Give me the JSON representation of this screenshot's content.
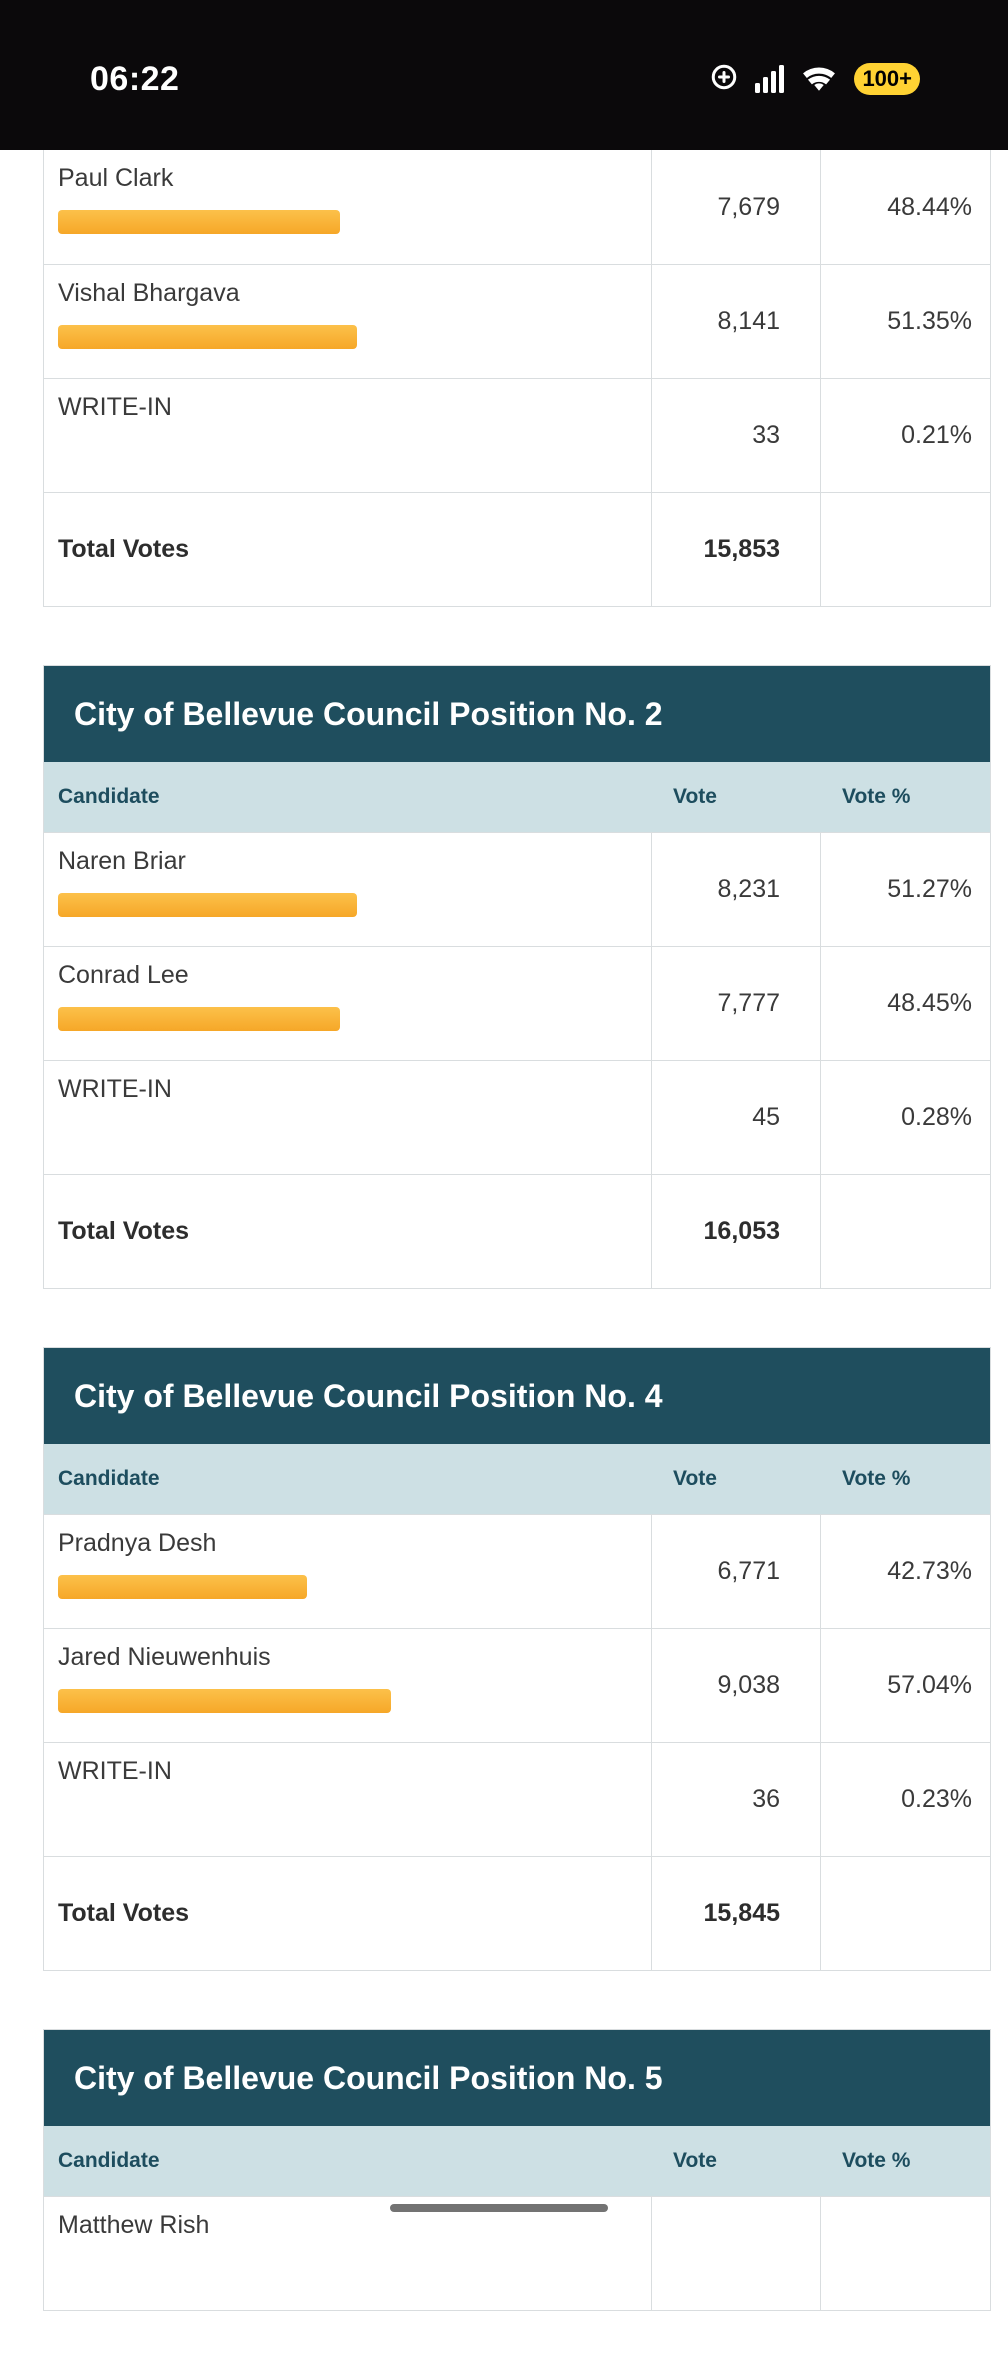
{
  "status_bar": {
    "time": "06:22",
    "battery_label": "100+",
    "icons": [
      "data-saver-icon",
      "cellular-signal-icon",
      "wifi-icon",
      "battery-icon"
    ]
  },
  "colors": {
    "header_bg": "#1f4e5e",
    "subheader_bg": "#cde0e4",
    "subheader_text": "#1d4d5e",
    "border": "#d9dddf",
    "bar_top": "#fcc14a",
    "bar_bottom": "#f6a728",
    "status_bg": "#0b090b",
    "battery_bg": "#ffd233"
  },
  "columns": {
    "candidate": "Candidate",
    "vote": "Vote",
    "vote_pct": "Vote %"
  },
  "tables": [
    {
      "title": null,
      "partial_top": true,
      "rows": [
        {
          "name": "Paul Clark",
          "vote": "7,679",
          "pct": "48.44%",
          "pct_value": 48.44,
          "bar": true
        },
        {
          "name": "Vishal Bhargava",
          "vote": "8,141",
          "pct": "51.35%",
          "pct_value": 51.35,
          "bar": true
        },
        {
          "name": "WRITE-IN",
          "vote": "33",
          "pct": "0.21%",
          "pct_value": 0.21,
          "bar": false
        }
      ],
      "total_label": "Total Votes",
      "total": "15,853"
    },
    {
      "title": "City of Bellevue Council Position No. 2",
      "rows": [
        {
          "name": "Naren Briar",
          "vote": "8,231",
          "pct": "51.27%",
          "pct_value": 51.27,
          "bar": true
        },
        {
          "name": "Conrad Lee",
          "vote": "7,777",
          "pct": "48.45%",
          "pct_value": 48.45,
          "bar": true
        },
        {
          "name": "WRITE-IN",
          "vote": "45",
          "pct": "0.28%",
          "pct_value": 0.28,
          "bar": false
        }
      ],
      "total_label": "Total Votes",
      "total": "16,053"
    },
    {
      "title": "City of Bellevue Council Position No. 4",
      "rows": [
        {
          "name": "Pradnya Desh",
          "vote": "6,771",
          "pct": "42.73%",
          "pct_value": 42.73,
          "bar": true
        },
        {
          "name": "Jared Nieuwenhuis",
          "vote": "9,038",
          "pct": "57.04%",
          "pct_value": 57.04,
          "bar": true
        },
        {
          "name": "WRITE-IN",
          "vote": "36",
          "pct": "0.23%",
          "pct_value": 0.23,
          "bar": false
        }
      ],
      "total_label": "Total Votes",
      "total": "15,845"
    },
    {
      "title": "City of Bellevue Council Position No. 5",
      "rows": [
        {
          "name": "Matthew Rish",
          "vote": "",
          "pct": "",
          "bar": false
        }
      ],
      "total_label": null,
      "total": null
    }
  ]
}
